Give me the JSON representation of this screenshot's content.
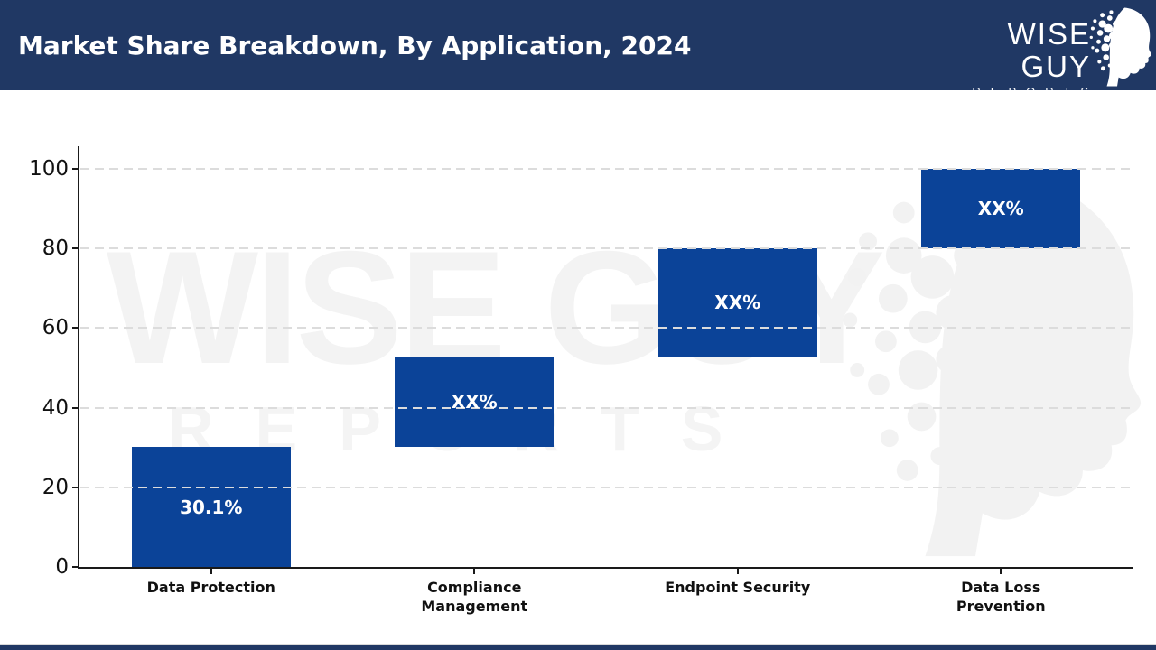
{
  "header": {
    "title": "Market Share Breakdown, By Application, 2024",
    "bg_color": "#203864"
  },
  "logo": {
    "brand": "WISE GUY",
    "sub": "REPORTS"
  },
  "watermark": {
    "brand": "WISE GUY",
    "sub": "REPORTS"
  },
  "colors": {
    "header_bg": "#203864",
    "bar": "#0b4398",
    "axis": "#1a1a1a",
    "gridline": "#dcdcdc",
    "watermark": "#f3f3f3",
    "bar_label_text": "#ffffff",
    "title_text": "#ffffff"
  },
  "chart_data": {
    "type": "bar",
    "variant": "waterfall",
    "title": "Market Share Breakdown, By Application, 2024",
    "xlabel": "",
    "ylabel": "",
    "categories": [
      "Data Protection",
      "Compliance Management",
      "Endpoint Security",
      "Data Loss Prevention"
    ],
    "category_lines": [
      [
        "Data Protection"
      ],
      [
        "Compliance",
        "Management"
      ],
      [
        "Endpoint Security"
      ],
      [
        "Data Loss",
        "Prevention"
      ]
    ],
    "segments": [
      {
        "category": "Data Protection",
        "start": 0,
        "end": 30.1,
        "label": "30.1%"
      },
      {
        "category": "Compliance Management",
        "start": 30.1,
        "end": 52.7,
        "label": "XX%"
      },
      {
        "category": "Endpoint Security",
        "start": 52.7,
        "end": 80,
        "label": "XX%"
      },
      {
        "category": "Data Loss Prevention",
        "start": 80,
        "end": 100,
        "label": "XX%"
      }
    ],
    "yticks": [
      0,
      20,
      40,
      60,
      80,
      100
    ],
    "ylim": [
      0,
      100
    ],
    "grid": true,
    "legend_position": "none",
    "bar_color": "#0b4398"
  }
}
